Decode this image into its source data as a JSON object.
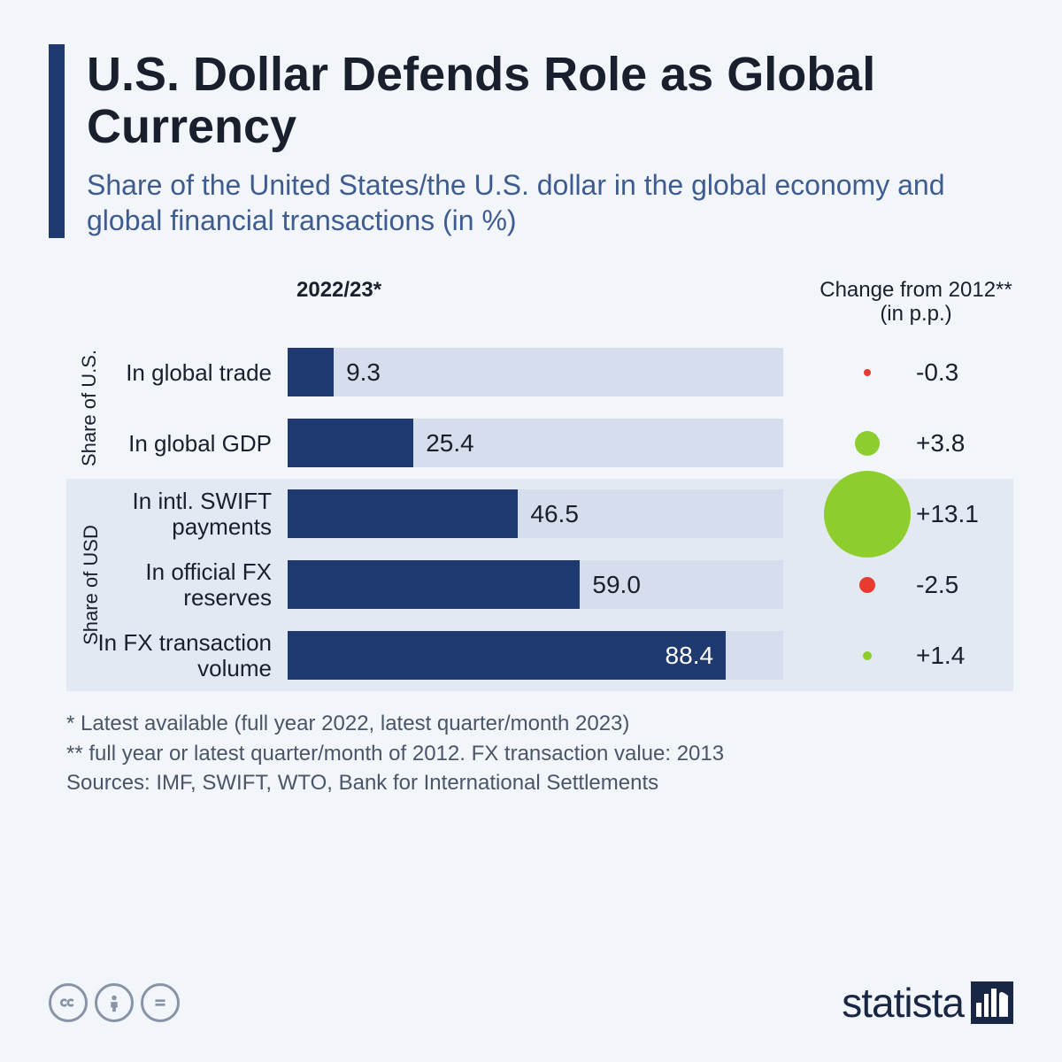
{
  "title": "U.S. Dollar Defends Role as Global Currency",
  "subtitle": "Share of the United States/the U.S. dollar in the global economy and global financial transactions (in %)",
  "year_label": "2022/23*",
  "change_label": "Change from 2012** (in p.p.)",
  "bar_color": "#1f3a70",
  "track_color": "#d6deee",
  "positive_color": "#8dce2e",
  "negative_color": "#e83a2e",
  "bar_max": 100,
  "bubble_scale": 7.5,
  "bubble_min": 8,
  "groups": [
    {
      "label": "Share of U.S.",
      "shaded": false,
      "rows": [
        {
          "label": "In global trade",
          "value": 9.3,
          "value_text": "9.3",
          "value_inside": false,
          "change": -0.3,
          "change_text": "-0.3"
        },
        {
          "label": "In global GDP",
          "value": 25.4,
          "value_text": "25.4",
          "value_inside": false,
          "change": 3.8,
          "change_text": "+3.8"
        }
      ]
    },
    {
      "label": "Share of USD",
      "shaded": true,
      "rows": [
        {
          "label": "In intl. SWIFT payments",
          "value": 46.5,
          "value_text": "46.5",
          "value_inside": false,
          "change": 13.1,
          "change_text": "+13.1"
        },
        {
          "label": "In official FX reserves",
          "value": 59.0,
          "value_text": "59.0",
          "value_inside": false,
          "change": -2.5,
          "change_text": "-2.5"
        },
        {
          "label": "In FX transaction volume",
          "value": 88.4,
          "value_text": "88.4",
          "value_inside": true,
          "change": 1.4,
          "change_text": "+1.4"
        }
      ]
    }
  ],
  "footnote1": "*   Latest available (full year 2022, latest quarter/month 2023)",
  "footnote2": "** full year or latest quarter/month of 2012. FX transaction value: 2013",
  "sources": "Sources: IMF, SWIFT, WTO, Bank for International Settlements",
  "logo_text": "statista",
  "cc": [
    "cc",
    "by",
    "nd"
  ]
}
